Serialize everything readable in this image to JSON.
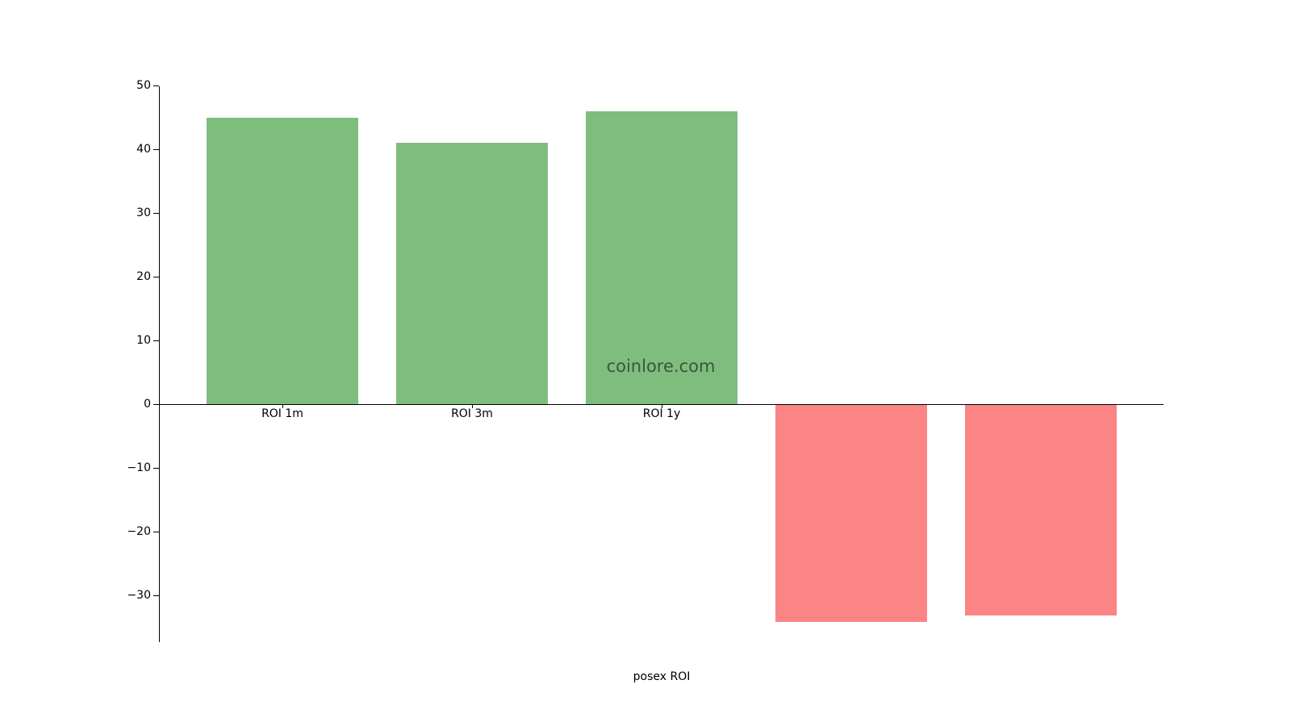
{
  "page": {
    "background_color": "#ffffff"
  },
  "chart_data": {
    "type": "bar",
    "categories": [
      "ROI 1m",
      "ROI 3m",
      "ROI 1y",
      "",
      ""
    ],
    "values": [
      45,
      41,
      46,
      -34,
      -33
    ],
    "title": "",
    "xlabel": "posex ROI",
    "ylabel": "",
    "ylim": [
      -38,
      50.5
    ],
    "yticks": [
      50,
      40,
      30,
      20,
      10,
      0,
      -10,
      -20,
      -30
    ],
    "grid": false,
    "legend": false,
    "positive_color": "#7ebd7e",
    "negative_color": "#fb8584",
    "axis_color": "#000000",
    "tick_label_color": "#000000",
    "watermark": {
      "text": "coinlore.com",
      "color": "rgba(0,0,0,0.55)"
    }
  }
}
